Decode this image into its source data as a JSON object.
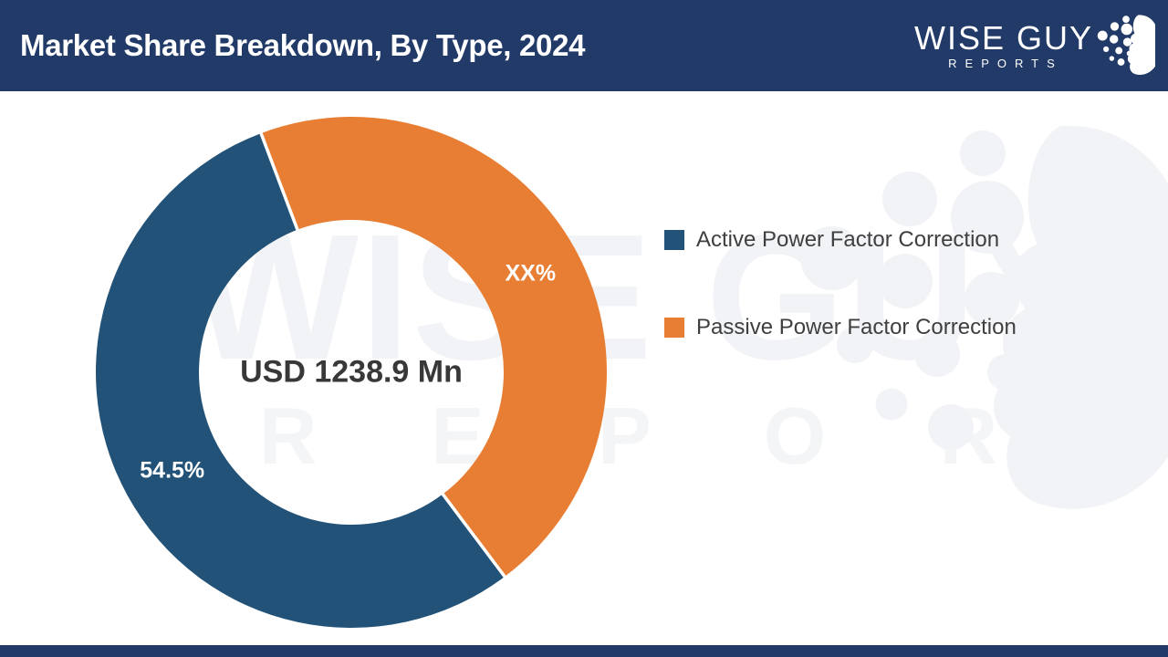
{
  "header": {
    "title": "Market Share Breakdown, By Type, 2024",
    "logo_line1": "WISE GUY",
    "logo_line2": "REPORTS",
    "bg_color": "#223A68"
  },
  "watermark": {
    "line1": "WISE GUY",
    "line2": "R E P O R T S"
  },
  "chart_data": {
    "type": "pie",
    "subtype": "donut",
    "title": "Market Share Breakdown, By Type, 2024",
    "categories": [
      "Active Power Factor Correction",
      "Passive Power Factor Correction"
    ],
    "values": [
      54.5,
      45.5
    ],
    "slice_labels": [
      "54.5%",
      "XX%"
    ],
    "colors": [
      "#225277",
      "#E87E33"
    ],
    "center_label": "USD 1238.9 Mn",
    "start_angle_deg": 110.7,
    "direction": "counterclockwise",
    "legend_position": "right"
  },
  "legend": {
    "items": [
      {
        "label": "Active Power Factor Correction",
        "color": "#225277"
      },
      {
        "label": "Passive Power Factor Correction",
        "color": "#E87E33"
      }
    ]
  }
}
